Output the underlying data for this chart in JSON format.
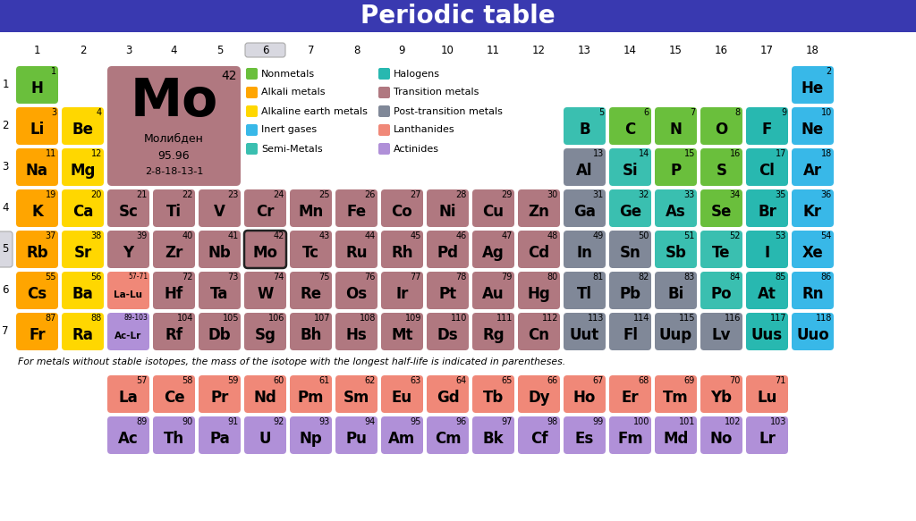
{
  "title": "Periodic table",
  "title_bg": "#3939b0",
  "title_color": "white",
  "subtitle": "For metals without stable isotopes, the mass of the isotope with the longest half-life is indicated in parentheses.",
  "highlight_col": 6,
  "highlight_element": {
    "symbol": "Mo",
    "name": "Молибден",
    "mass": "95.96",
    "config": "2-8-18-13-1",
    "atomic_num": 42
  },
  "colors": {
    "nonmetal": "#6abf3c",
    "alkali": "#ffa500",
    "alkaline": "#ffd700",
    "inert": "#38b8e8",
    "semi": "#3abfb0",
    "halogen": "#28b8b0",
    "transition": "#b07880",
    "post_transition": "#808898",
    "lanthanide": "#f08878",
    "actinide": "#b090d8",
    "highlight_bg": "#b07880"
  },
  "legend_left": [
    {
      "label": "Nonmetals",
      "color": "#6abf3c"
    },
    {
      "label": "Alkali metals",
      "color": "#ffa500"
    },
    {
      "label": "Alkaline earth metals",
      "color": "#ffd700"
    },
    {
      "label": "Inert gases",
      "color": "#38b8e8"
    },
    {
      "label": "Semi-Metals",
      "color": "#3abfb0"
    }
  ],
  "legend_right": [
    {
      "label": "Halogens",
      "color": "#28b8b0"
    },
    {
      "label": "Transition metals",
      "color": "#b07880"
    },
    {
      "label": "Post-transition metals",
      "color": "#808898"
    },
    {
      "label": "Lanthanides",
      "color": "#f08878"
    },
    {
      "label": "Actinides",
      "color": "#b090d8"
    }
  ],
  "elements": [
    {
      "symbol": "H",
      "num": 1,
      "row": 1,
      "col": 1,
      "type": "nonmetal"
    },
    {
      "symbol": "He",
      "num": 2,
      "row": 1,
      "col": 18,
      "type": "inert"
    },
    {
      "symbol": "Li",
      "num": 3,
      "row": 2,
      "col": 1,
      "type": "alkali"
    },
    {
      "symbol": "Be",
      "num": 4,
      "row": 2,
      "col": 2,
      "type": "alkaline"
    },
    {
      "symbol": "B",
      "num": 5,
      "row": 2,
      "col": 13,
      "type": "semi"
    },
    {
      "symbol": "C",
      "num": 6,
      "row": 2,
      "col": 14,
      "type": "nonmetal"
    },
    {
      "symbol": "N",
      "num": 7,
      "row": 2,
      "col": 15,
      "type": "nonmetal"
    },
    {
      "symbol": "O",
      "num": 8,
      "row": 2,
      "col": 16,
      "type": "nonmetal"
    },
    {
      "symbol": "F",
      "num": 9,
      "row": 2,
      "col": 17,
      "type": "halogen"
    },
    {
      "symbol": "Ne",
      "num": 10,
      "row": 2,
      "col": 18,
      "type": "inert"
    },
    {
      "symbol": "Na",
      "num": 11,
      "row": 3,
      "col": 1,
      "type": "alkali"
    },
    {
      "symbol": "Mg",
      "num": 12,
      "row": 3,
      "col": 2,
      "type": "alkaline"
    },
    {
      "symbol": "Al",
      "num": 13,
      "row": 3,
      "col": 13,
      "type": "post_transition"
    },
    {
      "symbol": "Si",
      "num": 14,
      "row": 3,
      "col": 14,
      "type": "semi"
    },
    {
      "symbol": "P",
      "num": 15,
      "row": 3,
      "col": 15,
      "type": "nonmetal"
    },
    {
      "symbol": "S",
      "num": 16,
      "row": 3,
      "col": 16,
      "type": "nonmetal"
    },
    {
      "symbol": "Cl",
      "num": 17,
      "row": 3,
      "col": 17,
      "type": "halogen"
    },
    {
      "symbol": "Ar",
      "num": 18,
      "row": 3,
      "col": 18,
      "type": "inert"
    },
    {
      "symbol": "K",
      "num": 19,
      "row": 4,
      "col": 1,
      "type": "alkali"
    },
    {
      "symbol": "Ca",
      "num": 20,
      "row": 4,
      "col": 2,
      "type": "alkaline"
    },
    {
      "symbol": "Sc",
      "num": 21,
      "row": 4,
      "col": 3,
      "type": "transition"
    },
    {
      "symbol": "Ti",
      "num": 22,
      "row": 4,
      "col": 4,
      "type": "transition"
    },
    {
      "symbol": "V",
      "num": 23,
      "row": 4,
      "col": 5,
      "type": "transition"
    },
    {
      "symbol": "Cr",
      "num": 24,
      "row": 4,
      "col": 6,
      "type": "transition"
    },
    {
      "symbol": "Mn",
      "num": 25,
      "row": 4,
      "col": 7,
      "type": "transition"
    },
    {
      "symbol": "Fe",
      "num": 26,
      "row": 4,
      "col": 8,
      "type": "transition"
    },
    {
      "symbol": "Co",
      "num": 27,
      "row": 4,
      "col": 9,
      "type": "transition"
    },
    {
      "symbol": "Ni",
      "num": 28,
      "row": 4,
      "col": 10,
      "type": "transition"
    },
    {
      "symbol": "Cu",
      "num": 29,
      "row": 4,
      "col": 11,
      "type": "transition"
    },
    {
      "symbol": "Zn",
      "num": 30,
      "row": 4,
      "col": 12,
      "type": "transition"
    },
    {
      "symbol": "Ga",
      "num": 31,
      "row": 4,
      "col": 13,
      "type": "post_transition"
    },
    {
      "symbol": "Ge",
      "num": 32,
      "row": 4,
      "col": 14,
      "type": "semi"
    },
    {
      "symbol": "As",
      "num": 33,
      "row": 4,
      "col": 15,
      "type": "semi"
    },
    {
      "symbol": "Se",
      "num": 34,
      "row": 4,
      "col": 16,
      "type": "nonmetal"
    },
    {
      "symbol": "Br",
      "num": 35,
      "row": 4,
      "col": 17,
      "type": "halogen"
    },
    {
      "symbol": "Kr",
      "num": 36,
      "row": 4,
      "col": 18,
      "type": "inert"
    },
    {
      "symbol": "Rb",
      "num": 37,
      "row": 5,
      "col": 1,
      "type": "alkali"
    },
    {
      "symbol": "Sr",
      "num": 38,
      "row": 5,
      "col": 2,
      "type": "alkaline"
    },
    {
      "symbol": "Y",
      "num": 39,
      "row": 5,
      "col": 3,
      "type": "transition"
    },
    {
      "symbol": "Zr",
      "num": 40,
      "row": 5,
      "col": 4,
      "type": "transition"
    },
    {
      "symbol": "Nb",
      "num": 41,
      "row": 5,
      "col": 5,
      "type": "transition"
    },
    {
      "symbol": "Mo",
      "num": 42,
      "row": 5,
      "col": 6,
      "type": "transition",
      "outlined": true
    },
    {
      "symbol": "Tc",
      "num": 43,
      "row": 5,
      "col": 7,
      "type": "transition"
    },
    {
      "symbol": "Ru",
      "num": 44,
      "row": 5,
      "col": 8,
      "type": "transition"
    },
    {
      "symbol": "Rh",
      "num": 45,
      "row": 5,
      "col": 9,
      "type": "transition"
    },
    {
      "symbol": "Pd",
      "num": 46,
      "row": 5,
      "col": 10,
      "type": "transition"
    },
    {
      "symbol": "Ag",
      "num": 47,
      "row": 5,
      "col": 11,
      "type": "transition"
    },
    {
      "symbol": "Cd",
      "num": 48,
      "row": 5,
      "col": 12,
      "type": "transition"
    },
    {
      "symbol": "In",
      "num": 49,
      "row": 5,
      "col": 13,
      "type": "post_transition"
    },
    {
      "symbol": "Sn",
      "num": 50,
      "row": 5,
      "col": 14,
      "type": "post_transition"
    },
    {
      "symbol": "Sb",
      "num": 51,
      "row": 5,
      "col": 15,
      "type": "semi"
    },
    {
      "symbol": "Te",
      "num": 52,
      "row": 5,
      "col": 16,
      "type": "semi"
    },
    {
      "symbol": "I",
      "num": 53,
      "row": 5,
      "col": 17,
      "type": "halogen"
    },
    {
      "symbol": "Xe",
      "num": 54,
      "row": 5,
      "col": 18,
      "type": "inert"
    },
    {
      "symbol": "Cs",
      "num": 55,
      "row": 6,
      "col": 1,
      "type": "alkali"
    },
    {
      "symbol": "Ba",
      "num": 56,
      "row": 6,
      "col": 2,
      "type": "alkaline"
    },
    {
      "symbol": "La-Lu",
      "num_str": "57-71",
      "row": 6,
      "col": 3,
      "type": "lanthanide",
      "small": true
    },
    {
      "symbol": "Hf",
      "num": 72,
      "row": 6,
      "col": 4,
      "type": "transition"
    },
    {
      "symbol": "Ta",
      "num": 73,
      "row": 6,
      "col": 5,
      "type": "transition"
    },
    {
      "symbol": "W",
      "num": 74,
      "row": 6,
      "col": 6,
      "type": "transition"
    },
    {
      "symbol": "Re",
      "num": 75,
      "row": 6,
      "col": 7,
      "type": "transition"
    },
    {
      "symbol": "Os",
      "num": 76,
      "row": 6,
      "col": 8,
      "type": "transition"
    },
    {
      "symbol": "Ir",
      "num": 77,
      "row": 6,
      "col": 9,
      "type": "transition"
    },
    {
      "symbol": "Pt",
      "num": 78,
      "row": 6,
      "col": 10,
      "type": "transition"
    },
    {
      "symbol": "Au",
      "num": 79,
      "row": 6,
      "col": 11,
      "type": "transition"
    },
    {
      "symbol": "Hg",
      "num": 80,
      "row": 6,
      "col": 12,
      "type": "transition"
    },
    {
      "symbol": "Tl",
      "num": 81,
      "row": 6,
      "col": 13,
      "type": "post_transition"
    },
    {
      "symbol": "Pb",
      "num": 82,
      "row": 6,
      "col": 14,
      "type": "post_transition"
    },
    {
      "symbol": "Bi",
      "num": 83,
      "row": 6,
      "col": 15,
      "type": "post_transition"
    },
    {
      "symbol": "Po",
      "num": 84,
      "row": 6,
      "col": 16,
      "type": "semi"
    },
    {
      "symbol": "At",
      "num": 85,
      "row": 6,
      "col": 17,
      "type": "halogen"
    },
    {
      "symbol": "Rn",
      "num": 86,
      "row": 6,
      "col": 18,
      "type": "inert"
    },
    {
      "symbol": "Fr",
      "num": 87,
      "row": 7,
      "col": 1,
      "type": "alkali"
    },
    {
      "symbol": "Ra",
      "num": 88,
      "row": 7,
      "col": 2,
      "type": "alkaline"
    },
    {
      "symbol": "Ac-Lr",
      "num_str": "89-103",
      "row": 7,
      "col": 3,
      "type": "actinide",
      "small": true
    },
    {
      "symbol": "Rf",
      "num": 104,
      "row": 7,
      "col": 4,
      "type": "transition"
    },
    {
      "symbol": "Db",
      "num": 105,
      "row": 7,
      "col": 5,
      "type": "transition"
    },
    {
      "symbol": "Sg",
      "num": 106,
      "row": 7,
      "col": 6,
      "type": "transition"
    },
    {
      "symbol": "Bh",
      "num": 107,
      "row": 7,
      "col": 7,
      "type": "transition"
    },
    {
      "symbol": "Hs",
      "num": 108,
      "row": 7,
      "col": 8,
      "type": "transition"
    },
    {
      "symbol": "Mt",
      "num": 109,
      "row": 7,
      "col": 9,
      "type": "transition"
    },
    {
      "symbol": "Ds",
      "num": 110,
      "row": 7,
      "col": 10,
      "type": "transition"
    },
    {
      "symbol": "Rg",
      "num": 111,
      "row": 7,
      "col": 11,
      "type": "transition"
    },
    {
      "symbol": "Cn",
      "num": 112,
      "row": 7,
      "col": 12,
      "type": "transition"
    },
    {
      "symbol": "Uut",
      "num": 113,
      "row": 7,
      "col": 13,
      "type": "post_transition"
    },
    {
      "symbol": "Fl",
      "num": 114,
      "row": 7,
      "col": 14,
      "type": "post_transition"
    },
    {
      "symbol": "Uup",
      "num": 115,
      "row": 7,
      "col": 15,
      "type": "post_transition"
    },
    {
      "symbol": "Lv",
      "num": 116,
      "row": 7,
      "col": 16,
      "type": "post_transition"
    },
    {
      "symbol": "Uus",
      "num": 117,
      "row": 7,
      "col": 17,
      "type": "halogen"
    },
    {
      "symbol": "Uuo",
      "num": 118,
      "row": 7,
      "col": 18,
      "type": "inert"
    },
    {
      "symbol": "La",
      "num": 57,
      "row": 9,
      "col": 3,
      "type": "lanthanide"
    },
    {
      "symbol": "Ce",
      "num": 58,
      "row": 9,
      "col": 4,
      "type": "lanthanide"
    },
    {
      "symbol": "Pr",
      "num": 59,
      "row": 9,
      "col": 5,
      "type": "lanthanide"
    },
    {
      "symbol": "Nd",
      "num": 60,
      "row": 9,
      "col": 6,
      "type": "lanthanide"
    },
    {
      "symbol": "Pm",
      "num": 61,
      "row": 9,
      "col": 7,
      "type": "lanthanide"
    },
    {
      "symbol": "Sm",
      "num": 62,
      "row": 9,
      "col": 8,
      "type": "lanthanide"
    },
    {
      "symbol": "Eu",
      "num": 63,
      "row": 9,
      "col": 9,
      "type": "lanthanide"
    },
    {
      "symbol": "Gd",
      "num": 64,
      "row": 9,
      "col": 10,
      "type": "lanthanide"
    },
    {
      "symbol": "Tb",
      "num": 65,
      "row": 9,
      "col": 11,
      "type": "lanthanide"
    },
    {
      "symbol": "Dy",
      "num": 66,
      "row": 9,
      "col": 12,
      "type": "lanthanide"
    },
    {
      "symbol": "Ho",
      "num": 67,
      "row": 9,
      "col": 13,
      "type": "lanthanide"
    },
    {
      "symbol": "Er",
      "num": 68,
      "row": 9,
      "col": 14,
      "type": "lanthanide"
    },
    {
      "symbol": "Tm",
      "num": 69,
      "row": 9,
      "col": 15,
      "type": "lanthanide"
    },
    {
      "symbol": "Yb",
      "num": 70,
      "row": 9,
      "col": 16,
      "type": "lanthanide"
    },
    {
      "symbol": "Lu",
      "num": 71,
      "row": 9,
      "col": 17,
      "type": "lanthanide"
    },
    {
      "symbol": "Ac",
      "num": 89,
      "row": 10,
      "col": 3,
      "type": "actinide"
    },
    {
      "symbol": "Th",
      "num": 90,
      "row": 10,
      "col": 4,
      "type": "actinide"
    },
    {
      "symbol": "Pa",
      "num": 91,
      "row": 10,
      "col": 5,
      "type": "actinide"
    },
    {
      "symbol": "U",
      "num": 92,
      "row": 10,
      "col": 6,
      "type": "actinide"
    },
    {
      "symbol": "Np",
      "num": 93,
      "row": 10,
      "col": 7,
      "type": "actinide"
    },
    {
      "symbol": "Pu",
      "num": 94,
      "row": 10,
      "col": 8,
      "type": "actinide"
    },
    {
      "symbol": "Am",
      "num": 95,
      "row": 10,
      "col": 9,
      "type": "actinide"
    },
    {
      "symbol": "Cm",
      "num": 96,
      "row": 10,
      "col": 10,
      "type": "actinide"
    },
    {
      "symbol": "Bk",
      "num": 97,
      "row": 10,
      "col": 11,
      "type": "actinide"
    },
    {
      "symbol": "Cf",
      "num": 98,
      "row": 10,
      "col": 12,
      "type": "actinide"
    },
    {
      "symbol": "Es",
      "num": 99,
      "row": 10,
      "col": 13,
      "type": "actinide"
    },
    {
      "symbol": "Fm",
      "num": 100,
      "row": 10,
      "col": 14,
      "type": "actinide"
    },
    {
      "symbol": "Md",
      "num": 101,
      "row": 10,
      "col": 15,
      "type": "actinide"
    },
    {
      "symbol": "No",
      "num": 102,
      "row": 10,
      "col": 16,
      "type": "actinide"
    },
    {
      "symbol": "Lr",
      "num": 103,
      "row": 10,
      "col": 17,
      "type": "actinide"
    }
  ]
}
